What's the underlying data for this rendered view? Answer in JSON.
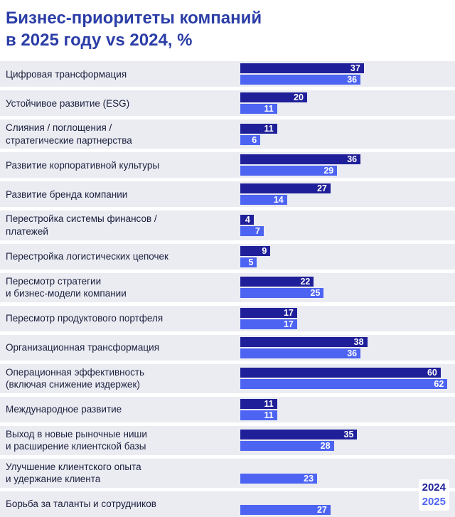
{
  "title": {
    "line1": "Бизнес-приоритеты компаний",
    "line2": "в 2025 году vs 2024, %"
  },
  "legend": {
    "position": "bottom-right",
    "items": [
      {
        "label": "2024"
      },
      {
        "label": "2025"
      }
    ]
  },
  "colors": {
    "bar_2024": "#1f1f99",
    "bar_2025": "#4d64f2",
    "row_bg": "#ebecf2",
    "title": "#2b3da6",
    "label": "#1a1f3d",
    "value_text": "#ffffff",
    "background": "#ffffff"
  },
  "chart_data": {
    "type": "bar",
    "orientation": "horizontal",
    "title": "Бизнес-приоритеты компаний в 2025 году vs 2024, %",
    "unit": "%",
    "xlabel": "",
    "ylabel": "",
    "xlim": [
      0,
      63
    ],
    "grid": false,
    "legend_position": "bottom-right",
    "series": [
      "2024",
      "2025"
    ],
    "rows": [
      {
        "label_lines": [
          "Цифровая трансформация"
        ],
        "values": {
          "2024": 37,
          "2025": 36
        }
      },
      {
        "label_lines": [
          "Устойчивое развитие (ESG)"
        ],
        "values": {
          "2024": 20,
          "2025": 11
        }
      },
      {
        "label_lines": [
          "Слияния / поглощения /",
          "стратегические партнерства"
        ],
        "values": {
          "2024": 11,
          "2025": 6
        }
      },
      {
        "label_lines": [
          "Развитие корпоративной культуры"
        ],
        "values": {
          "2024": 36,
          "2025": 29
        }
      },
      {
        "label_lines": [
          "Развитие бренда компании"
        ],
        "values": {
          "2024": 27,
          "2025": 14
        }
      },
      {
        "label_lines": [
          "Перестройка системы финансов /",
          "платежей"
        ],
        "values": {
          "2024": 4,
          "2025": 7
        }
      },
      {
        "label_lines": [
          "Перестройка логистических цепочек"
        ],
        "values": {
          "2024": 9,
          "2025": 5
        }
      },
      {
        "label_lines": [
          "Пересмотр стратегии",
          "и бизнес-модели компании"
        ],
        "values": {
          "2024": 22,
          "2025": 25
        }
      },
      {
        "label_lines": [
          "Пересмотр продуктового портфеля"
        ],
        "values": {
          "2024": 17,
          "2025": 17
        }
      },
      {
        "label_lines": [
          "Организационная трансформация"
        ],
        "values": {
          "2024": 38,
          "2025": 36
        }
      },
      {
        "label_lines": [
          "Операционная эффективность",
          "(включая снижение издержек)"
        ],
        "values": {
          "2024": 60,
          "2025": 62
        }
      },
      {
        "label_lines": [
          "Международное развитие"
        ],
        "values": {
          "2024": 11,
          "2025": 11
        }
      },
      {
        "label_lines": [
          "Выход в новые рыночные ниши",
          "и расширение клиентской базы"
        ],
        "values": {
          "2024": 35,
          "2025": 28
        }
      },
      {
        "label_lines": [
          "Улучшение клиентского опыта",
          "и удержание клиента"
        ],
        "values": {
          "2024": null,
          "2025": 23
        }
      },
      {
        "label_lines": [
          "Борьба за таланты и сотрудников"
        ],
        "values": {
          "2024": null,
          "2025": 27
        }
      }
    ]
  }
}
